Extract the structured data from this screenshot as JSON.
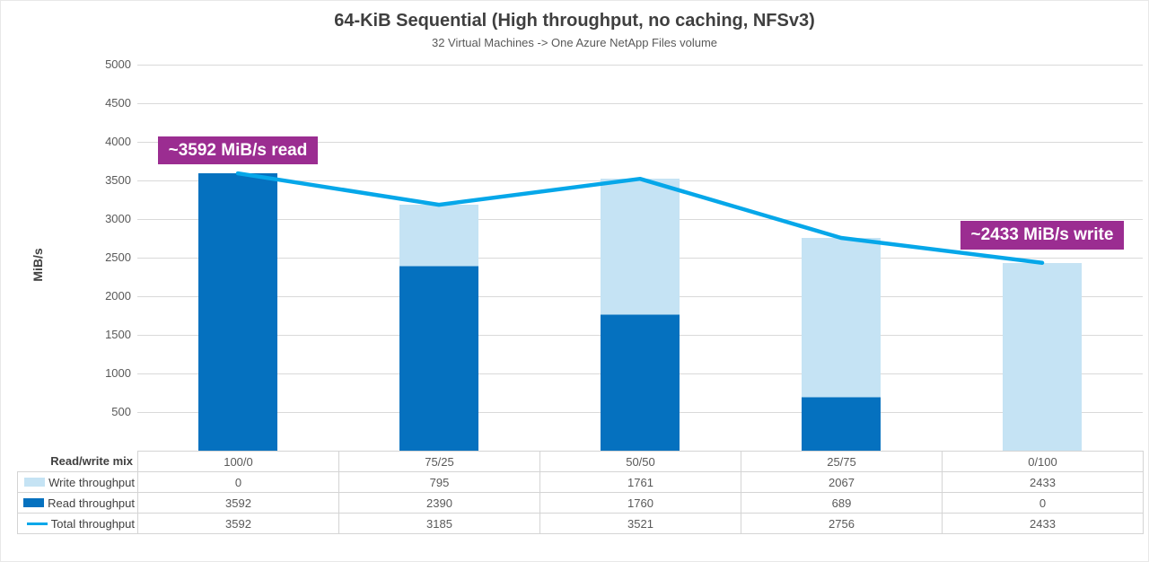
{
  "chart_data": {
    "type": "bar",
    "subtype": "stacked-bars-with-line-overlay",
    "title": "64-KiB Sequential (High throughput, no caching, NFSv3)",
    "subtitle": "32 Virtual Machines -> One Azure NetApp Files volume",
    "ylabel": "MiB/s",
    "ylim": [
      0,
      5000
    ],
    "ytick_step": 500,
    "grid": true,
    "legend_position": "data-table-left",
    "category_header": "Read/write mix",
    "categories": [
      "100/0",
      "75/25",
      "50/50",
      "25/75",
      "0/100"
    ],
    "series": [
      {
        "name": "Write throughput",
        "type": "bar",
        "stack": "top",
        "color": "#c5e3f4",
        "values": [
          0,
          795,
          1761,
          2067,
          2433
        ]
      },
      {
        "name": "Read throughput",
        "type": "bar",
        "stack": "bottom",
        "color": "#0571bf",
        "values": [
          3592,
          2390,
          1760,
          689,
          0
        ]
      },
      {
        "name": "Total throughput",
        "type": "line",
        "color": "#06a7e9",
        "values": [
          3592,
          3185,
          3521,
          2756,
          2433
        ]
      }
    ],
    "annotations": [
      {
        "text": "~3592 MiB/s read",
        "color": "#9b2d91",
        "anchor_category": "100/0"
      },
      {
        "text": "~2433 MiB/s write",
        "color": "#9b2d91",
        "anchor_category": "0/100"
      }
    ],
    "colors": {
      "gridline": "#d9d9d9",
      "table_border": "#d4d4d4",
      "tick_text": "#595959",
      "title_text": "#3f3f3f"
    }
  }
}
